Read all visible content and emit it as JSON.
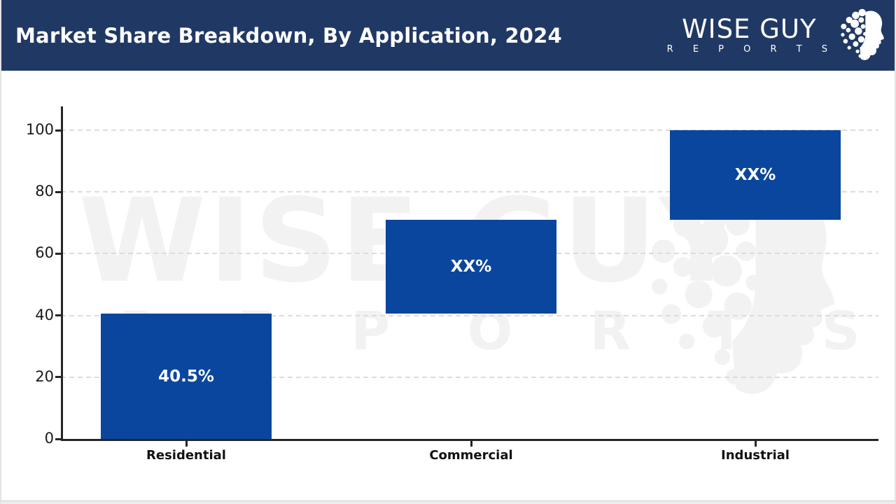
{
  "header": {
    "title": "Market Share Breakdown, By Application, 2024",
    "bg_color": "#203864",
    "logo": {
      "line1": "WISE GUY",
      "line2": "R E P O R T S"
    }
  },
  "watermark": {
    "line1": "WISE GUY",
    "line2": "R E P O R T S",
    "color": "#f2f2f2"
  },
  "chart_data": {
    "type": "bar",
    "style": "waterfall (each bar starts where previous ends)",
    "title": "Market Share Breakdown, By Application, 2024",
    "categories": [
      "Residential",
      "Commercial",
      "Industrial"
    ],
    "bars": [
      {
        "category": "Residential",
        "start": 0,
        "end": 40.5,
        "label": "40.5%"
      },
      {
        "category": "Commercial",
        "start": 40.5,
        "end": 71,
        "label": "XX%"
      },
      {
        "category": "Industrial",
        "start": 71,
        "end": 100,
        "label": "XX%"
      }
    ],
    "xlabel": "",
    "ylabel": "",
    "ylim": [
      0,
      100
    ],
    "yticks": [
      0,
      20,
      40,
      60,
      80,
      100
    ],
    "grid": "horizontal dashed",
    "legend": "none",
    "bar_color": "#0A469E",
    "bar_label_color": "#ffffff",
    "axis_color": "#262626",
    "grid_color": "#dcdcdc"
  }
}
